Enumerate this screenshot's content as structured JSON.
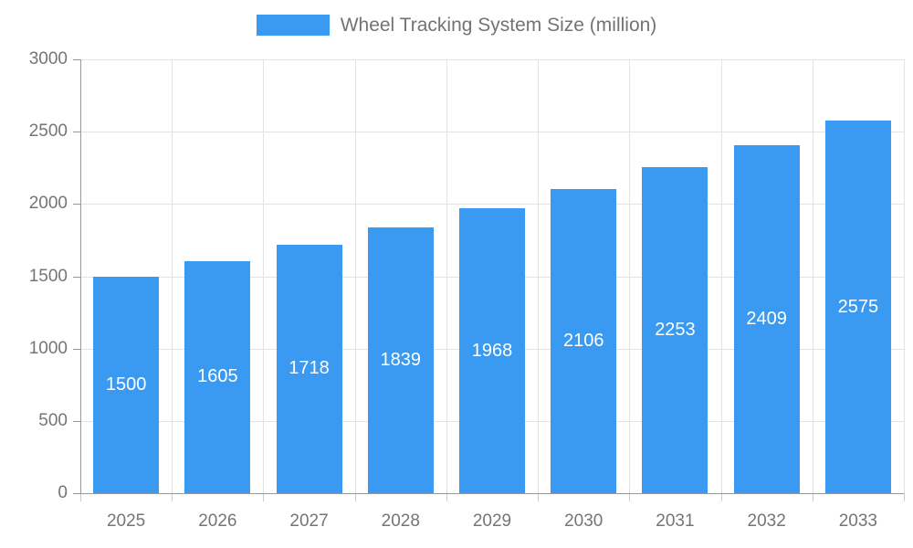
{
  "chart_data": {
    "type": "bar",
    "title": "Wheel Tracking System Size (million)",
    "categories": [
      "2025",
      "2026",
      "2027",
      "2028",
      "2029",
      "2030",
      "2031",
      "2032",
      "2033"
    ],
    "values": [
      1500,
      1605,
      1718,
      1839,
      1968,
      2106,
      2253,
      2409,
      2575
    ],
    "xlabel": "",
    "ylabel": "",
    "ylim": [
      0,
      3000
    ],
    "ytick_interval": 500,
    "grid": "both",
    "legend_position": "top-center",
    "value_labels": "inside-center"
  },
  "colors": {
    "bar": "#3A99F0",
    "grid": "#E3E3E3",
    "axis": "#999999",
    "minor_tick": "#CCCCCC",
    "tick_label": "#757575",
    "legend_text": "#737373",
    "value_label": "#FFFFFF",
    "background": "#FFFFFF"
  }
}
